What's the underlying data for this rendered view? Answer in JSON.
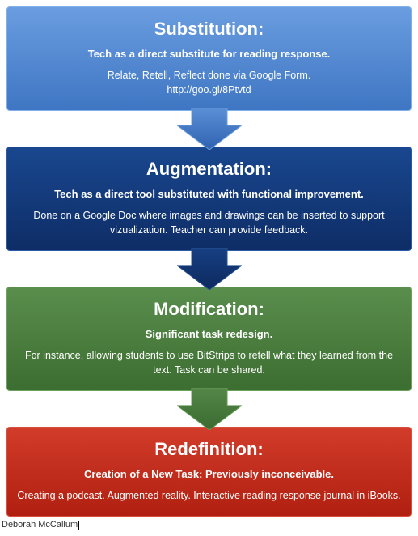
{
  "diagram": {
    "type": "flowchart",
    "blocks": [
      {
        "title": "Substitution:",
        "subtitle": "Tech as a direct substitute for reading response.",
        "body": "Relate, Retell, Reflect done via Google Form.<br>http://goo.gl/8Ptvtd",
        "bg_top": "#6a9de0",
        "bg_bottom": "#3f76c3",
        "border": "#7fb0ea",
        "arrow_top": "#5b8fd6",
        "arrow_bottom": "#2f63b0",
        "arrow_border": "#6f9fdc"
      },
      {
        "title": "Augmentation:",
        "subtitle": "Tech as a direct tool substituted with functional improvement.",
        "body": "Done on a Google Doc where images and drawings can be inserted to support vizualization. Teacher can provide feedback.",
        "bg_top": "#19478f",
        "bg_bottom": "#0e2d66",
        "border": "#2a5aa3",
        "arrow_top": "#173f82",
        "arrow_bottom": "#0d2a5f",
        "arrow_border": "#26538f"
      },
      {
        "title": "Modification:",
        "subtitle": "Significant task redesign.",
        "body": "For instance, allowing students to use BitStrips to retell what they learned from the text. Task can be shared.",
        "bg_top": "#5a8e4d",
        "bg_bottom": "#3c6d31",
        "border": "#6aa35b",
        "arrow_top": "#548748",
        "arrow_bottom": "#3a6a30",
        "arrow_border": "#629a53"
      },
      {
        "title": "Redefinition:",
        "subtitle": "Creation of a New Task: Previously inconceivable.",
        "body": "Creating a podcast. Augmented reality. Interactive reading response journal in iBooks.",
        "bg_top": "#d23c2a",
        "bg_bottom": "#b01f10",
        "border": "#d94e3d",
        "arrow_top": null,
        "arrow_bottom": null,
        "arrow_border": null
      }
    ],
    "title_fontsize": 22,
    "subtitle_fontsize": 13,
    "body_fontsize": 12.5,
    "block_width": 501,
    "arrow_width": 80,
    "arrow_height": 52,
    "background_color": "#ffffff"
  },
  "footer": {
    "credit": "Deborah McCallum"
  }
}
